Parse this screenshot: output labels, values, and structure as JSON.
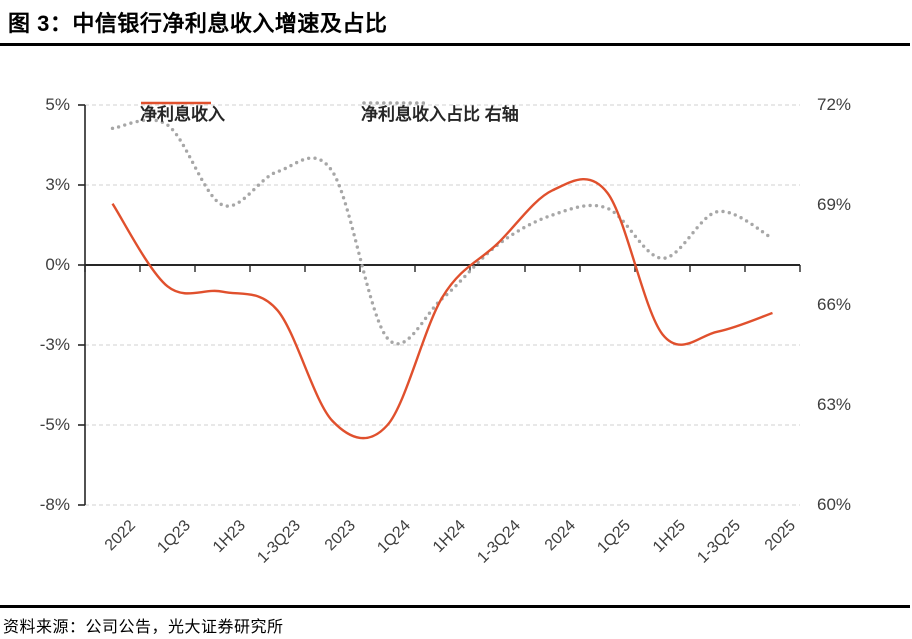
{
  "title": "图 3：中信银行净利息收入增速及占比",
  "source": "资料来源：公司公告，光大证券研究所",
  "legend": [
    {
      "label": "净利息收入",
      "style": "solid-line"
    },
    {
      "label": "净利息收入占比 右轴",
      "style": "dotted-line"
    }
  ],
  "colors": {
    "series_growth": "#E0502D",
    "series_share": "#A7A7A7",
    "gridline": "#D9D9D9",
    "axis": "#262626",
    "tick_text": "#3f3f3f"
  },
  "chart_data": {
    "type": "line",
    "title": "中信银行净利息收入增速及占比",
    "categories": [
      "2022",
      "1Q23",
      "1H23",
      "1-3Q23",
      "2023",
      "1Q24",
      "1H24",
      "1-3Q24",
      "2024",
      "1Q25",
      "1H25",
      "1-3Q25",
      "2025"
    ],
    "series": [
      {
        "name": "净利息收入",
        "axis": "left",
        "line": "solid",
        "color": "#E0502D",
        "values": [
          2.3,
          -0.8,
          -1.0,
          -1.7,
          -4.9,
          -5.0,
          -1.2,
          0.8,
          2.8,
          2.7,
          -2.6,
          -2.5,
          -1.8
        ]
      },
      {
        "name": "净利息收入占比 右轴",
        "axis": "right",
        "line": "dotted",
        "color": "#A7A7A7",
        "values": [
          71.3,
          71.4,
          69.0,
          70.0,
          70.0,
          65.0,
          66.2,
          67.8,
          68.7,
          68.9,
          67.4,
          68.8,
          68.0
        ]
      }
    ],
    "left_axis": {
      "tick_labels": [
        "5%",
        "3%",
        "0%",
        "-3%",
        "-5%",
        "-8%"
      ],
      "tick_values": [
        5,
        3,
        0,
        -3,
        -5,
        -8
      ],
      "zero_line": true
    },
    "right_axis": {
      "tick_labels": [
        "72%",
        "69%",
        "66%",
        "63%",
        "60%"
      ],
      "tick_values": [
        72,
        69,
        66,
        63,
        60
      ],
      "range": [
        60,
        72
      ]
    },
    "grid": "dashed-horizontal",
    "legend_position": "top-inside",
    "smoothing": true
  }
}
